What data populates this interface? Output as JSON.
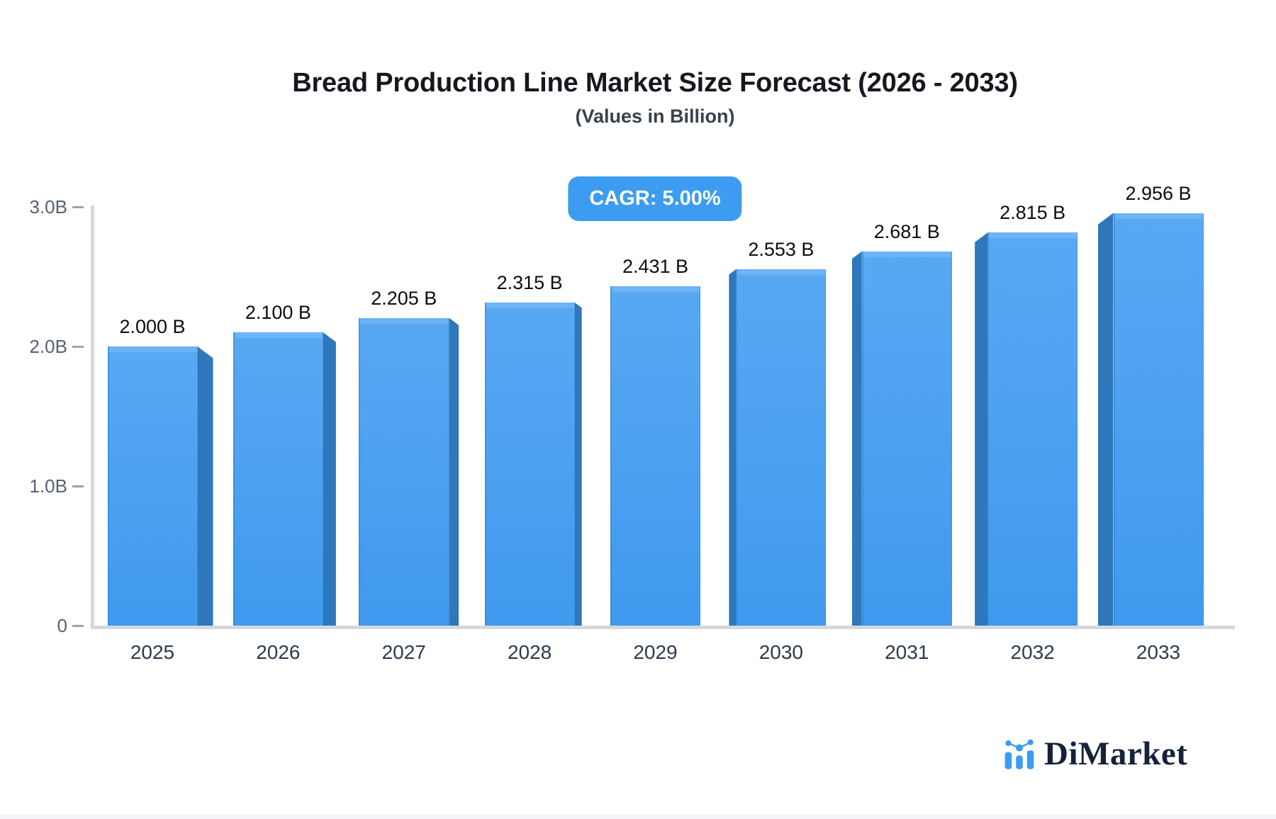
{
  "header": {
    "title": "Bread Production Line Market Size Forecast (2026 - 2033)",
    "subtitle": "(Values in Billion)"
  },
  "badge": {
    "label": "CAGR: 5.00%"
  },
  "chart_data": {
    "type": "bar",
    "title": "Bread Production Line Market Size Forecast (2026 - 2033)",
    "subtitle": "(Values in Billion)",
    "categories": [
      "2025",
      "2026",
      "2027",
      "2028",
      "2029",
      "2030",
      "2031",
      "2032",
      "2033"
    ],
    "values": [
      2.0,
      2.1,
      2.205,
      2.315,
      2.431,
      2.553,
      2.681,
      2.815,
      2.956
    ],
    "value_labels": [
      "2.000 B",
      "2.100 B",
      "2.205 B",
      "2.315 B",
      "2.431 B",
      "2.553 B",
      "2.681 B",
      "2.815 B",
      "2.956 B"
    ],
    "cagr": "CAGR: 5.00%",
    "y_ticks": [
      {
        "value": 0,
        "label": "0"
      },
      {
        "value": 1,
        "label": "1.0B"
      },
      {
        "value": 2,
        "label": "2.0B"
      },
      {
        "value": 3,
        "label": "3.0B"
      }
    ],
    "ylim": [
      0,
      3
    ],
    "xlabel": "",
    "ylabel": "",
    "legend": "none",
    "gridlines": false
  },
  "colors": {
    "bar_face_top": "#58a9f3",
    "bar_face_bottom": "#4099ee",
    "bar_top_face": "#6db4f7",
    "bar_side_face": "#2d77ba",
    "badge_bg": "#3d9cf1",
    "badge_text": "#ffffff",
    "axis_line": "#d5d8df",
    "tick": "#9aa3af",
    "y_label": "#566071",
    "x_label": "#2d3a4e",
    "value_label": "#0b0d12",
    "title": "#15181f",
    "subtitle": "#3a414d",
    "logo_icon": "#3d9bf0",
    "logo_text": "#16213a"
  },
  "logo": {
    "text": "DiMarket",
    "icon": "bar-chart-line-icon"
  }
}
